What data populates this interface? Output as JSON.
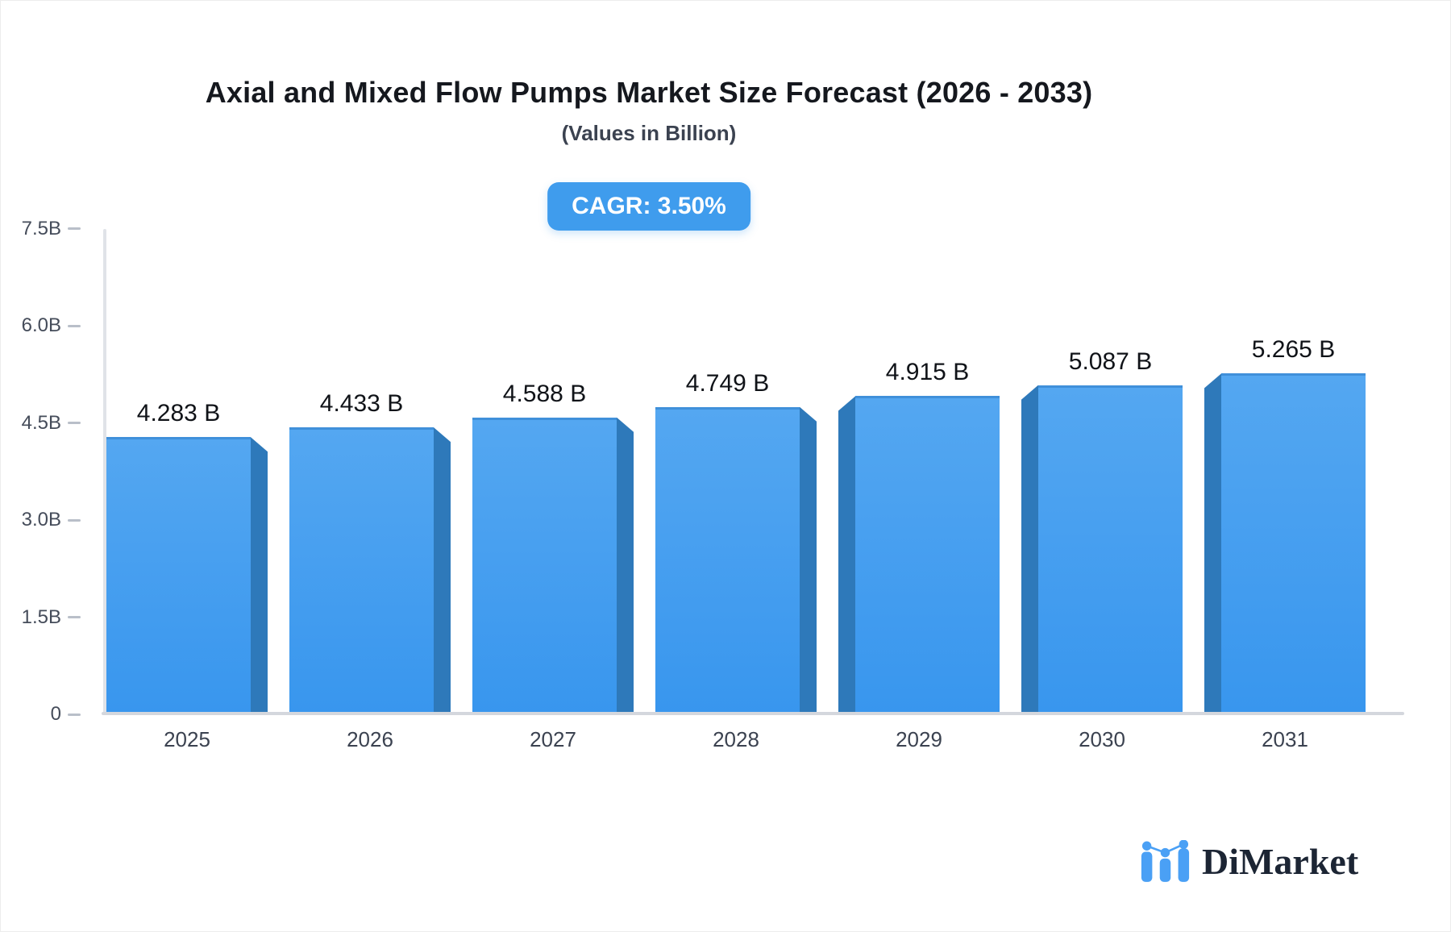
{
  "header": {
    "title": "Axial and Mixed Flow Pumps Market Size Forecast (2026 - 2033)",
    "subtitle": "(Values in Billion)",
    "cagr_label": "CAGR: 3.50%"
  },
  "chart_data": {
    "type": "bar",
    "title": "Axial and Mixed Flow Pumps Market Size Forecast (2026 - 2033)",
    "subtitle": "(Values in Billion)",
    "cagr_pct": 3.5,
    "categories": [
      "2025",
      "2026",
      "2027",
      "2028",
      "2029",
      "2030",
      "2031"
    ],
    "values": [
      4.283,
      4.433,
      4.588,
      4.749,
      4.915,
      5.087,
      5.265
    ],
    "value_labels": [
      "4.283 B",
      "4.433 B",
      "4.588 B",
      "4.749 B",
      "4.915 B",
      "5.087 B",
      "5.265 B"
    ],
    "unit": "Billion",
    "ylim": [
      0,
      7.5
    ],
    "ytick_values": [
      0,
      1.5,
      3.0,
      4.5,
      6.0,
      7.5
    ],
    "ytick_labels": [
      "0",
      "1.5B",
      "3.0B",
      "4.5B",
      "6.0B",
      "7.5B"
    ],
    "grid": false,
    "legend": false,
    "bar_style": "3d-beveled"
  },
  "theme": {
    "accent": "#3f9ced",
    "bar_top": "#54a7f1",
    "bar_bottom": "#3896ee",
    "bar_side": "#2e79ba",
    "bar_edge": "#4090da",
    "logo_blue": "#4aa0f5"
  },
  "footer": {
    "brand": "DiMarket"
  }
}
